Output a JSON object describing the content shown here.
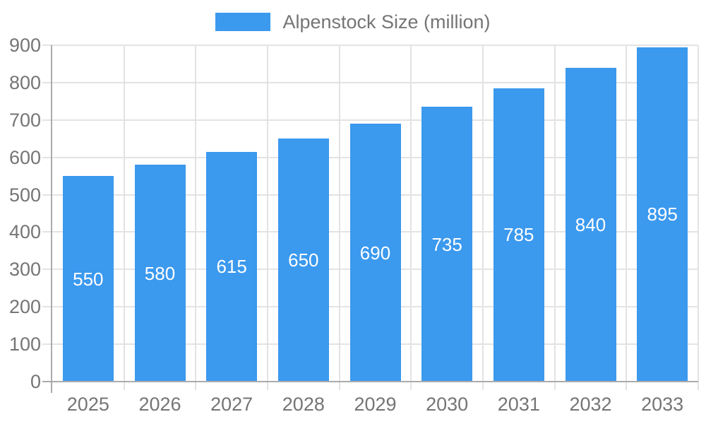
{
  "colors": {
    "bar": "#3B99EE",
    "axis_text": "#757575",
    "grid": "#E3E3E3",
    "axis_line": "#ABABAB",
    "value_label_text": "#FFFFFF",
    "background": "#FFFFFF"
  },
  "legend": {
    "label": "Alpenstock Size (million)"
  },
  "chart_data": {
    "type": "bar",
    "title": "",
    "xlabel": "",
    "ylabel": "",
    "categories": [
      "2025",
      "2026",
      "2027",
      "2028",
      "2029",
      "2030",
      "2031",
      "2032",
      "2033"
    ],
    "series": [
      {
        "name": "Alpenstock Size (million)",
        "values": [
          550,
          580,
          615,
          650,
          690,
          735,
          785,
          840,
          895
        ]
      }
    ],
    "ylim": [
      0,
      900
    ],
    "ytick_interval": 100,
    "yticks": [
      "0",
      "100",
      "200",
      "300",
      "400",
      "500",
      "600",
      "700",
      "800",
      "900"
    ],
    "grid": true,
    "legend_position": "top-center",
    "value_labels": "inside-center-white"
  }
}
